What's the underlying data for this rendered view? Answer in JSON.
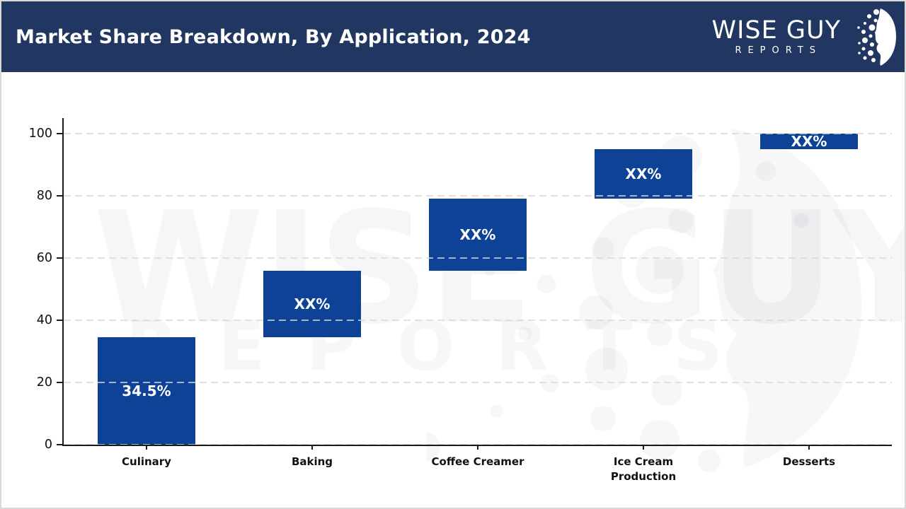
{
  "header": {
    "title": "Market Share Breakdown, By Application, 2024",
    "logo": {
      "line1": "WISE GUY",
      "line2": "REPORTS",
      "face_icon": "dotted-head-profile"
    }
  },
  "watermark": {
    "line1": "WISE GUY",
    "line2": "REPORTS"
  },
  "colors": {
    "header_bg": "#213660",
    "bar": "#0d4296",
    "bar_label": "#ffffff",
    "axis": "#1a1a1a",
    "gridline": "#d9d9d9",
    "tick_label": "#111111",
    "frame_border": "#d9d9d9",
    "logo_text": "#ffffff"
  },
  "chart_data": {
    "type": "bar",
    "subtype": "waterfall",
    "title": "Market Share Breakdown, By Application, 2024",
    "categories": [
      "Culinary",
      "Baking",
      "Coffee Creamer",
      "Ice Cream Production",
      "Desserts"
    ],
    "segments": [
      {
        "category": "Culinary",
        "start": 0,
        "end": 34.5,
        "label": "34.5%"
      },
      {
        "category": "Baking",
        "start": 34.5,
        "end": 56,
        "label": "XX%"
      },
      {
        "category": "Coffee Creamer",
        "start": 56,
        "end": 79,
        "label": "XX%"
      },
      {
        "category": "Ice Cream Production",
        "start": 79,
        "end": 95,
        "label": "XX%"
      },
      {
        "category": "Desserts",
        "start": 95,
        "end": 100,
        "label": "XX%"
      }
    ],
    "xlabel": "",
    "ylabel": "",
    "ylim": [
      0,
      105
    ],
    "yticks": [
      0,
      20,
      40,
      60,
      80,
      100
    ],
    "grid": true,
    "grid_style": "dashed",
    "legend": false,
    "bar_label_note": "values above first bar are masked as XX% in source image"
  }
}
